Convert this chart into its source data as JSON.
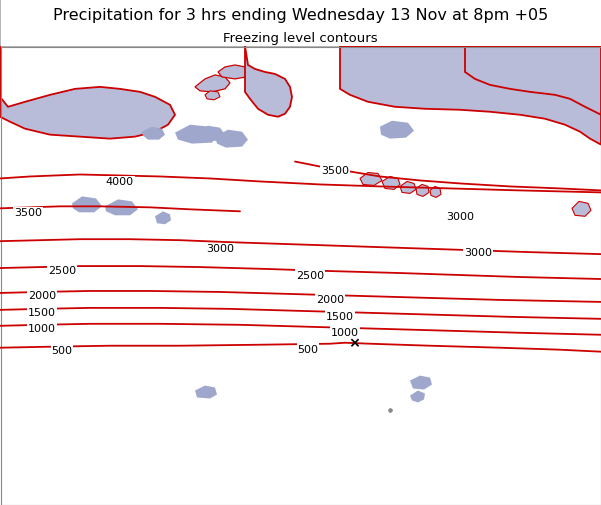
{
  "title": "Precipitation for 3 hrs ending Wednesday 13 Nov at 8pm +05",
  "subtitle": "Freezing level contours",
  "bg_color": "#cdd0e8",
  "land_color": "#b8bcd8",
  "contour_color": "#cc0000",
  "title_fontsize": 11.5,
  "subtitle_fontsize": 9.5,
  "label_fontsize": 8
}
